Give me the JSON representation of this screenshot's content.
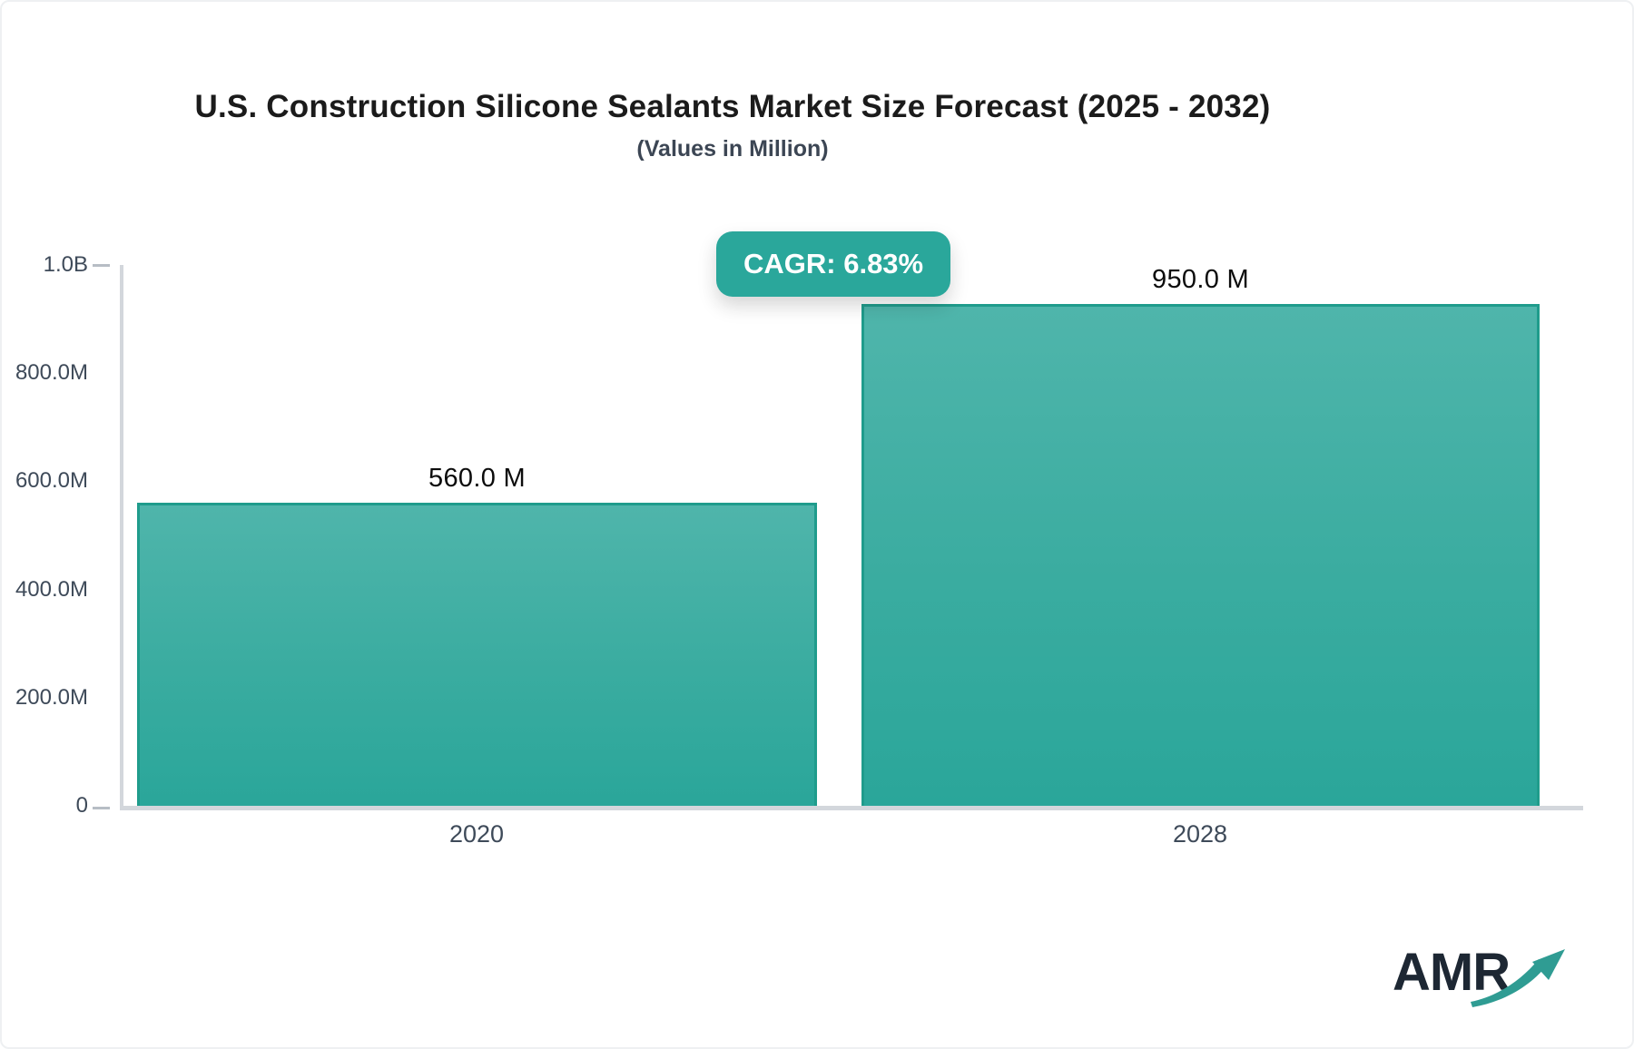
{
  "header": {
    "title": "U.S. Construction Silicone Sealants Market Size Forecast (2025 - 2032)",
    "subtitle": "(Values in Million)"
  },
  "badge": {
    "label": "CAGR: 6.83%",
    "bg_color": "#2aa79b",
    "text_color": "#ffffff"
  },
  "chart_data": {
    "type": "bar",
    "title": "U.S. Construction Silicone Sealants Market Size Forecast (2025 - 2032)",
    "subtitle": "(Values in Million)",
    "categories": [
      "2020",
      "2028"
    ],
    "values": [
      560,
      950
    ],
    "value_labels": [
      "560.0 M",
      "950.0 M"
    ],
    "annotations": [
      "CAGR: 6.83%"
    ],
    "ylim": [
      0,
      1000
    ],
    "y_tick_labels": [
      "1.0B",
      "800.0M",
      "600.0M",
      "400.0M",
      "200.0M",
      "0"
    ],
    "grid": false,
    "legend": false,
    "bar_color_top": "#4fb5ab",
    "bar_color_bottom": "#2aa69a",
    "bar_border_color": "#1f9c8c",
    "axis_color": "#d3d7dc",
    "label_color": "#3e4a59"
  },
  "logo": {
    "text": "AMR",
    "arrow_color": "#2f9c93"
  }
}
